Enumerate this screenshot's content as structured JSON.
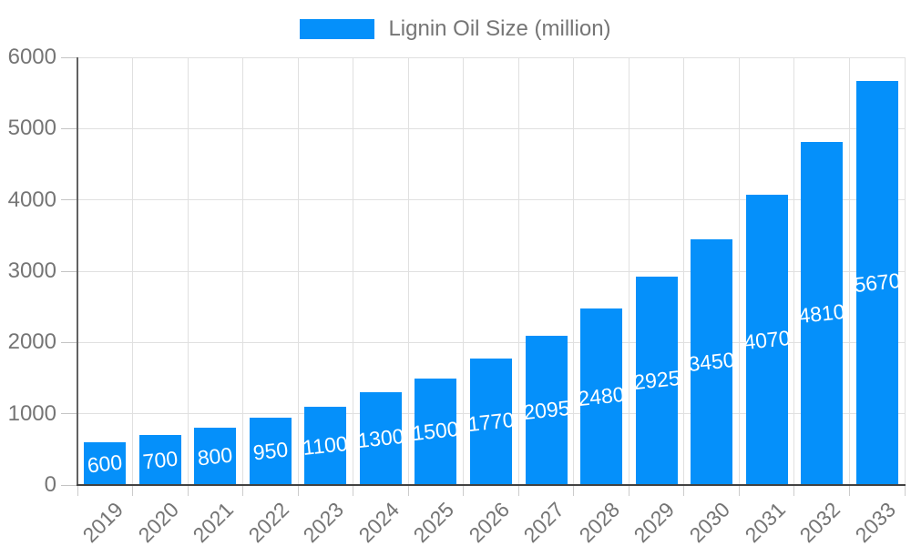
{
  "legend": {
    "label": "Lignin Oil Size (million)"
  },
  "colors": {
    "bar": "#0590fa",
    "grid": "#e0e0e0",
    "axis_text": "#757575",
    "value_text": "#ffffff"
  },
  "chart_data": {
    "type": "bar",
    "title": "",
    "xlabel": "",
    "ylabel": "",
    "categories": [
      "2019",
      "2020",
      "2021",
      "2022",
      "2023",
      "2024",
      "2025",
      "2026",
      "2027",
      "2028",
      "2029",
      "2030",
      "2031",
      "2032",
      "2033"
    ],
    "values": [
      600,
      700,
      800,
      950,
      1100,
      1300,
      1500,
      1770,
      2095,
      2480,
      2925,
      3450,
      4070,
      4810,
      5670
    ],
    "series_name": "Lignin Oil Size (million)",
    "ylim": [
      0,
      6000
    ],
    "yticks": [
      0,
      1000,
      2000,
      3000,
      4000,
      5000,
      6000
    ],
    "grid": true,
    "legend_position": "top-center",
    "value_labels_position": "inside-middle",
    "x_tick_label_rotation_deg": -45,
    "value_label_rotation_deg": -6
  }
}
